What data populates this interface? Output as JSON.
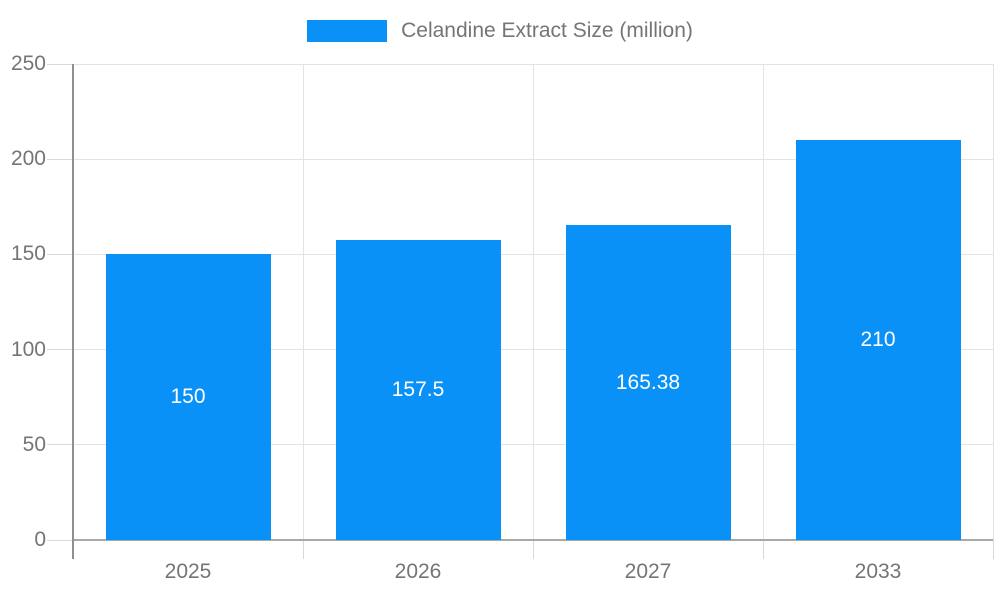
{
  "legend": {
    "label": "Celandine Extract Size (million)"
  },
  "chart_data": {
    "type": "bar",
    "title": "Celandine Extract Size (million)",
    "categories": [
      "2025",
      "2026",
      "2027",
      "2033"
    ],
    "values": [
      150,
      157.5,
      165.38,
      210
    ],
    "value_labels": [
      "150",
      "157.5",
      "165.38",
      "210"
    ],
    "ylim": [
      0,
      250
    ],
    "ytick_interval": 50,
    "ytick_labels": [
      "0",
      "50",
      "100",
      "150",
      "200",
      "250"
    ],
    "xlabel": "",
    "ylabel": "",
    "grid": true,
    "legend_position": "top-center",
    "colors": {
      "bar": "#0991F7",
      "bar_label_text": "#ffffff",
      "axis_text": "#757575",
      "gridline": "#e3e3e3",
      "axis_line": "#8f8f8f"
    }
  }
}
